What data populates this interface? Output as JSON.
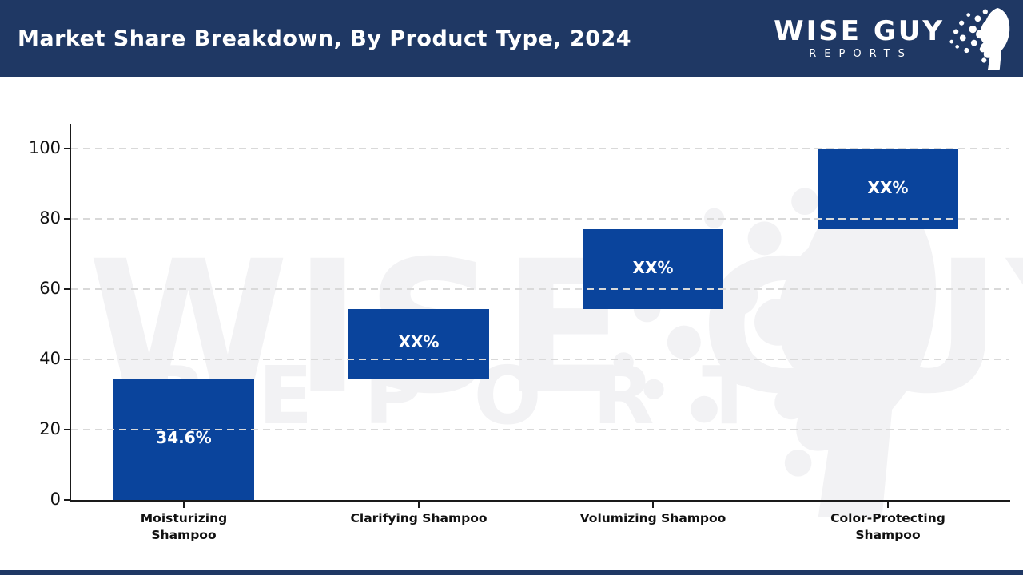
{
  "header": {
    "title": "Market Share Breakdown, By Product Type, 2024",
    "bg_color": "#1f3864",
    "logo": {
      "line1": "WISE GUY",
      "line2": "REPORTS"
    }
  },
  "watermark": {
    "line1": "WISE GUY",
    "line2": "REPORTS"
  },
  "chart_data": {
    "type": "bar",
    "subtype": "waterfall",
    "title": "Market Share Breakdown, By Product Type, 2024",
    "categories": [
      "Moisturizing Shampoo",
      "Clarifying Shampoo",
      "Volumizing Shampoo",
      "Color-Protecting Shampoo"
    ],
    "bars": [
      {
        "category": "Moisturizing Shampoo",
        "display_lines": [
          "Moisturizing",
          "Shampoo"
        ],
        "start": 0,
        "end": 34.6,
        "label": "34.6%"
      },
      {
        "category": "Clarifying Shampoo",
        "display_lines": [
          "Clarifying Shampoo"
        ],
        "start": 34.6,
        "end": 54.3,
        "label": "XX%"
      },
      {
        "category": "Volumizing Shampoo",
        "display_lines": [
          "Volumizing Shampoo"
        ],
        "start": 54.3,
        "end": 77,
        "label": "XX%"
      },
      {
        "category": "Color-Protecting Shampoo",
        "display_lines": [
          "Color-Protecting",
          "Shampoo"
        ],
        "start": 77,
        "end": 100,
        "label": "XX%"
      }
    ],
    "xlabel": "",
    "ylabel": "",
    "yticks": [
      0,
      20,
      40,
      60,
      80,
      100
    ],
    "ylim": [
      0,
      107
    ],
    "grid": {
      "visible": true,
      "style": "dashed",
      "color": "#d9d9d9",
      "over_bars": true
    },
    "legend": {
      "visible": false
    },
    "bar_color": "#0a449c",
    "bar_label_color": "#ffffff",
    "axis_color": "#1a1a1a"
  }
}
